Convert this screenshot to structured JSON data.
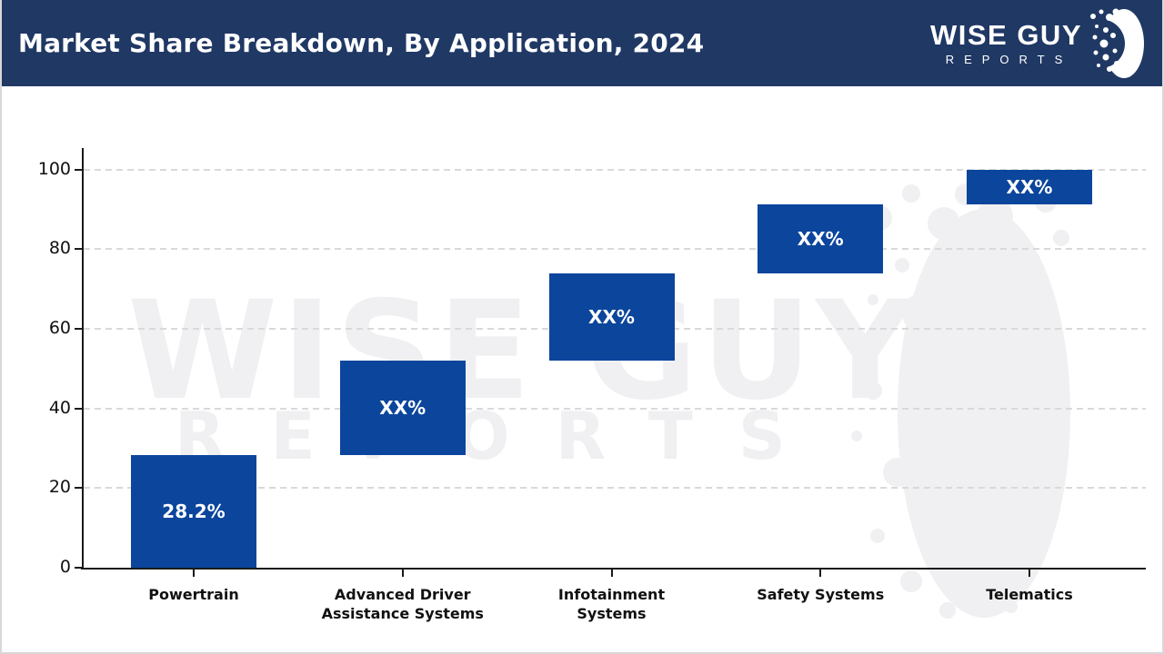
{
  "header": {
    "title": "Market Share Breakdown, By Application, 2024",
    "logo": {
      "wordmark": "WISE GUY",
      "subtext": "REPORTS"
    }
  },
  "watermark": {
    "line1": "WISE GUY",
    "line2": "REPORTS"
  },
  "chart_data": {
    "type": "bar",
    "subtype": "waterfall",
    "title": "Market Share Breakdown, By Application, 2024",
    "categories": [
      "Powertrain",
      "Advanced Driver Assistance Systems",
      "Infotainment Systems",
      "Safety Systems",
      "Telematics"
    ],
    "category_lines": [
      [
        "Powertrain"
      ],
      [
        "Advanced Driver",
        "Assistance Systems"
      ],
      [
        "Infotainment",
        "Systems"
      ],
      [
        "Safety Systems"
      ],
      [
        "Telematics"
      ]
    ],
    "segments": [
      {
        "category": "Powertrain",
        "start": 0,
        "end": 28.2,
        "label": "28.2%"
      },
      {
        "category": "Advanced Driver Assistance Systems",
        "start": 28.2,
        "end": 52.0,
        "label": "XX%"
      },
      {
        "category": "Infotainment Systems",
        "start": 52.0,
        "end": 73.8,
        "label": "XX%"
      },
      {
        "category": "Safety Systems",
        "start": 73.8,
        "end": 91.2,
        "label": "XX%"
      },
      {
        "category": "Telematics",
        "start": 91.2,
        "end": 100,
        "label": "XX%"
      }
    ],
    "y_ticks": [
      0,
      20,
      40,
      60,
      80,
      100
    ],
    "ylim": [
      0,
      105
    ],
    "xlabel": "",
    "ylabel": "",
    "grid": "horizontal-dashed",
    "legend": "none",
    "colors": {
      "bar": "#0b459c",
      "bar_label": "#ffffff",
      "header_bg": "#203864",
      "grid": "#d9d9d9",
      "axis": "#1a1a1a",
      "watermark": "#f0f0f2"
    }
  }
}
